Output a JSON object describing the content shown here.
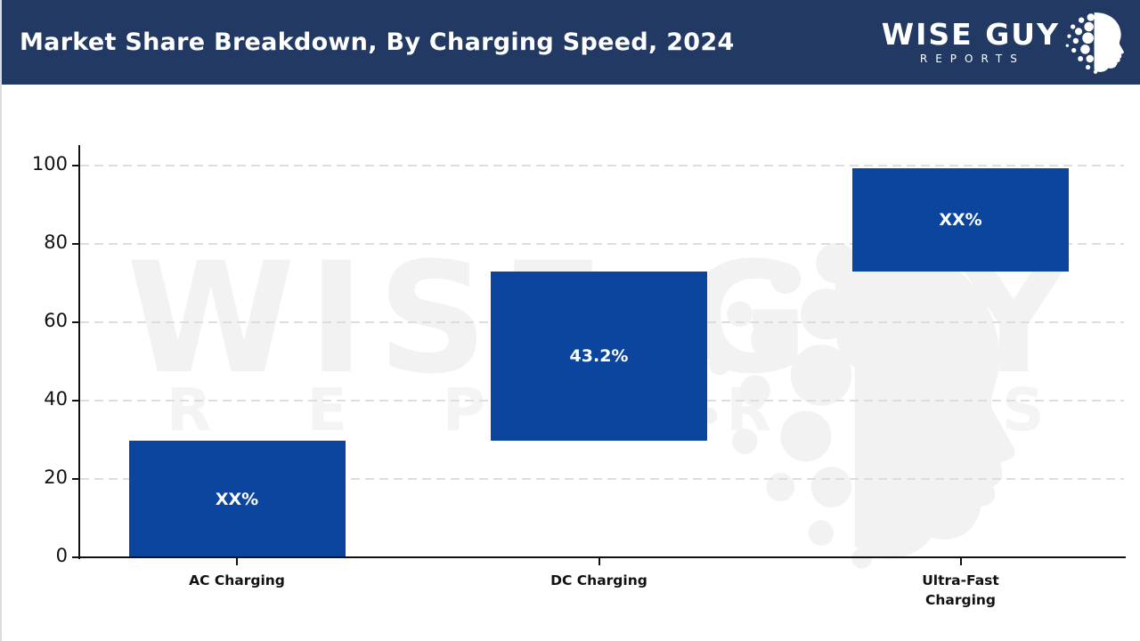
{
  "header": {
    "title": "Market Share Breakdown, By Charging Speed, 2024",
    "logo": {
      "line1": "WISE GUY",
      "line2": "REPORTS"
    }
  },
  "watermark": {
    "line1": "WISE GUY",
    "line2": "R E P O R T S"
  },
  "colors": {
    "header_bg": "#223A63",
    "bar": "#0C459E",
    "bar_label": "#FFFFFF",
    "grid": "#DEDEDE",
    "axis": "#111111",
    "watermark": "#F2F2F2"
  },
  "chart_data": {
    "type": "bar",
    "subtype": "floating-waterfall",
    "title": "Market Share Breakdown, By Charging Speed, 2024",
    "categories": [
      "AC Charging",
      "DC Charging",
      "Ultra-Fast Charging"
    ],
    "bars": [
      {
        "category": "AC Charging",
        "start": 0,
        "end": 29.7,
        "label": "XX%"
      },
      {
        "category": "DC Charging",
        "start": 29.7,
        "end": 72.9,
        "label": "43.2%"
      },
      {
        "category": "Ultra-Fast Charging",
        "start": 72.9,
        "end": 99.4,
        "label": "XX%"
      }
    ],
    "yticks": [
      0,
      20,
      40,
      60,
      80,
      100
    ],
    "ylim": [
      0,
      105
    ],
    "xlabel": "",
    "ylabel": "",
    "grid": "dashed-horizontal",
    "legend": "none"
  }
}
